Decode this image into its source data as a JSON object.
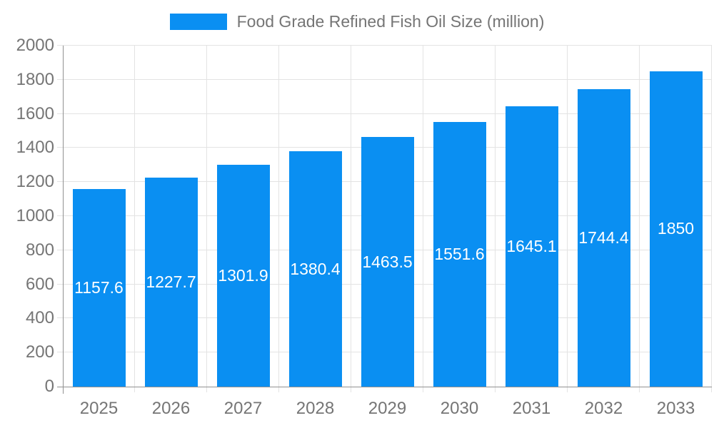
{
  "legend": {
    "label": "Food Grade Refined Fish Oil Size (million)"
  },
  "chart_data": {
    "type": "bar",
    "title": "Food Grade Refined Fish Oil Size (million)",
    "categories": [
      "2025",
      "2026",
      "2027",
      "2028",
      "2029",
      "2030",
      "2031",
      "2032",
      "2033"
    ],
    "values": [
      1157.6,
      1227.7,
      1301.9,
      1380.4,
      1463.5,
      1551.6,
      1645.1,
      1744.4,
      1850
    ],
    "xlabel": "",
    "ylabel": "",
    "ylim": [
      0,
      2000
    ],
    "yticks": [
      0,
      200,
      400,
      600,
      800,
      1000,
      1200,
      1400,
      1600,
      1800,
      2000
    ],
    "grid": true,
    "legend_position": "top",
    "value_labels": "inside-center",
    "colors": {
      "bar": "#0a8ff2",
      "bar_label": "#ffffff",
      "grid": "#e3e3e3",
      "axis": "#919191",
      "text": "#757575"
    }
  }
}
